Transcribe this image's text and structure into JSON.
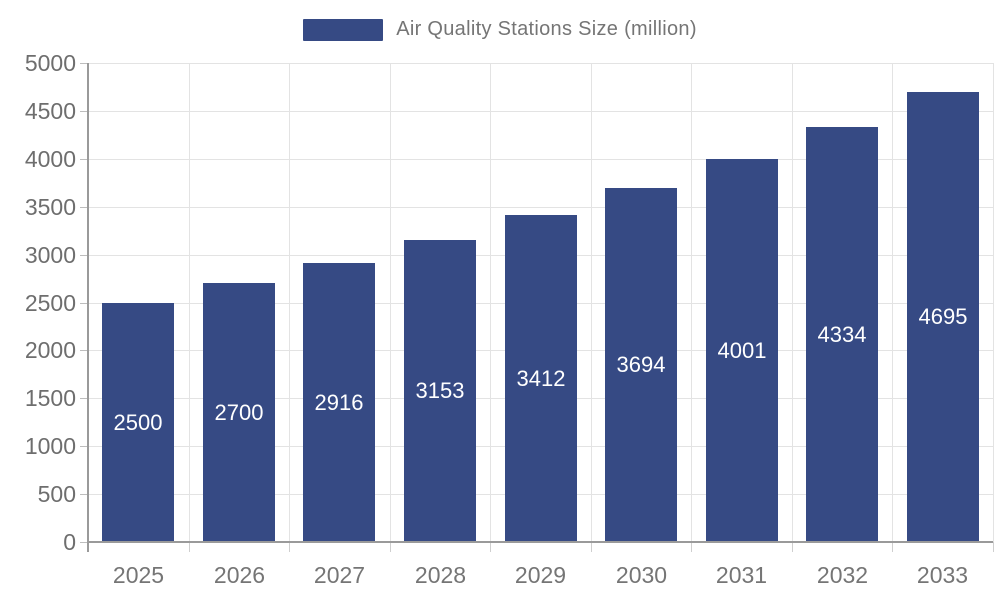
{
  "legend": {
    "label": "Air Quality Stations Size (million)"
  },
  "chart_data": {
    "type": "bar",
    "title": "Air Quality Stations Size (million)",
    "series_name": "Air Quality Stations Size (million)",
    "categories": [
      "2025",
      "2026",
      "2027",
      "2028",
      "2029",
      "2030",
      "2031",
      "2032",
      "2033"
    ],
    "values": [
      2500,
      2700,
      2916,
      3153,
      3412,
      3694,
      4001,
      4334,
      4695
    ],
    "value_labels": [
      "2500",
      "2700",
      "2916",
      "3153",
      "3412",
      "3694",
      "4001",
      "4334",
      "4695"
    ],
    "xlabel": "",
    "ylabel": "",
    "ylim": [
      0,
      5000
    ],
    "yticks": [
      0,
      500,
      1000,
      1500,
      2000,
      2500,
      3000,
      3500,
      4000,
      4500,
      5000
    ],
    "grid": true,
    "legend_position": "top-center",
    "value_label_position": "inside-center",
    "colors": {
      "bar": "#364A84",
      "value_label": "#ffffff",
      "axis_text": "#6e6e6e",
      "category_text": "#757575",
      "legend_text": "#757575",
      "gridline": "#e3e3e3",
      "axis_line": "#9a9a9a"
    }
  }
}
